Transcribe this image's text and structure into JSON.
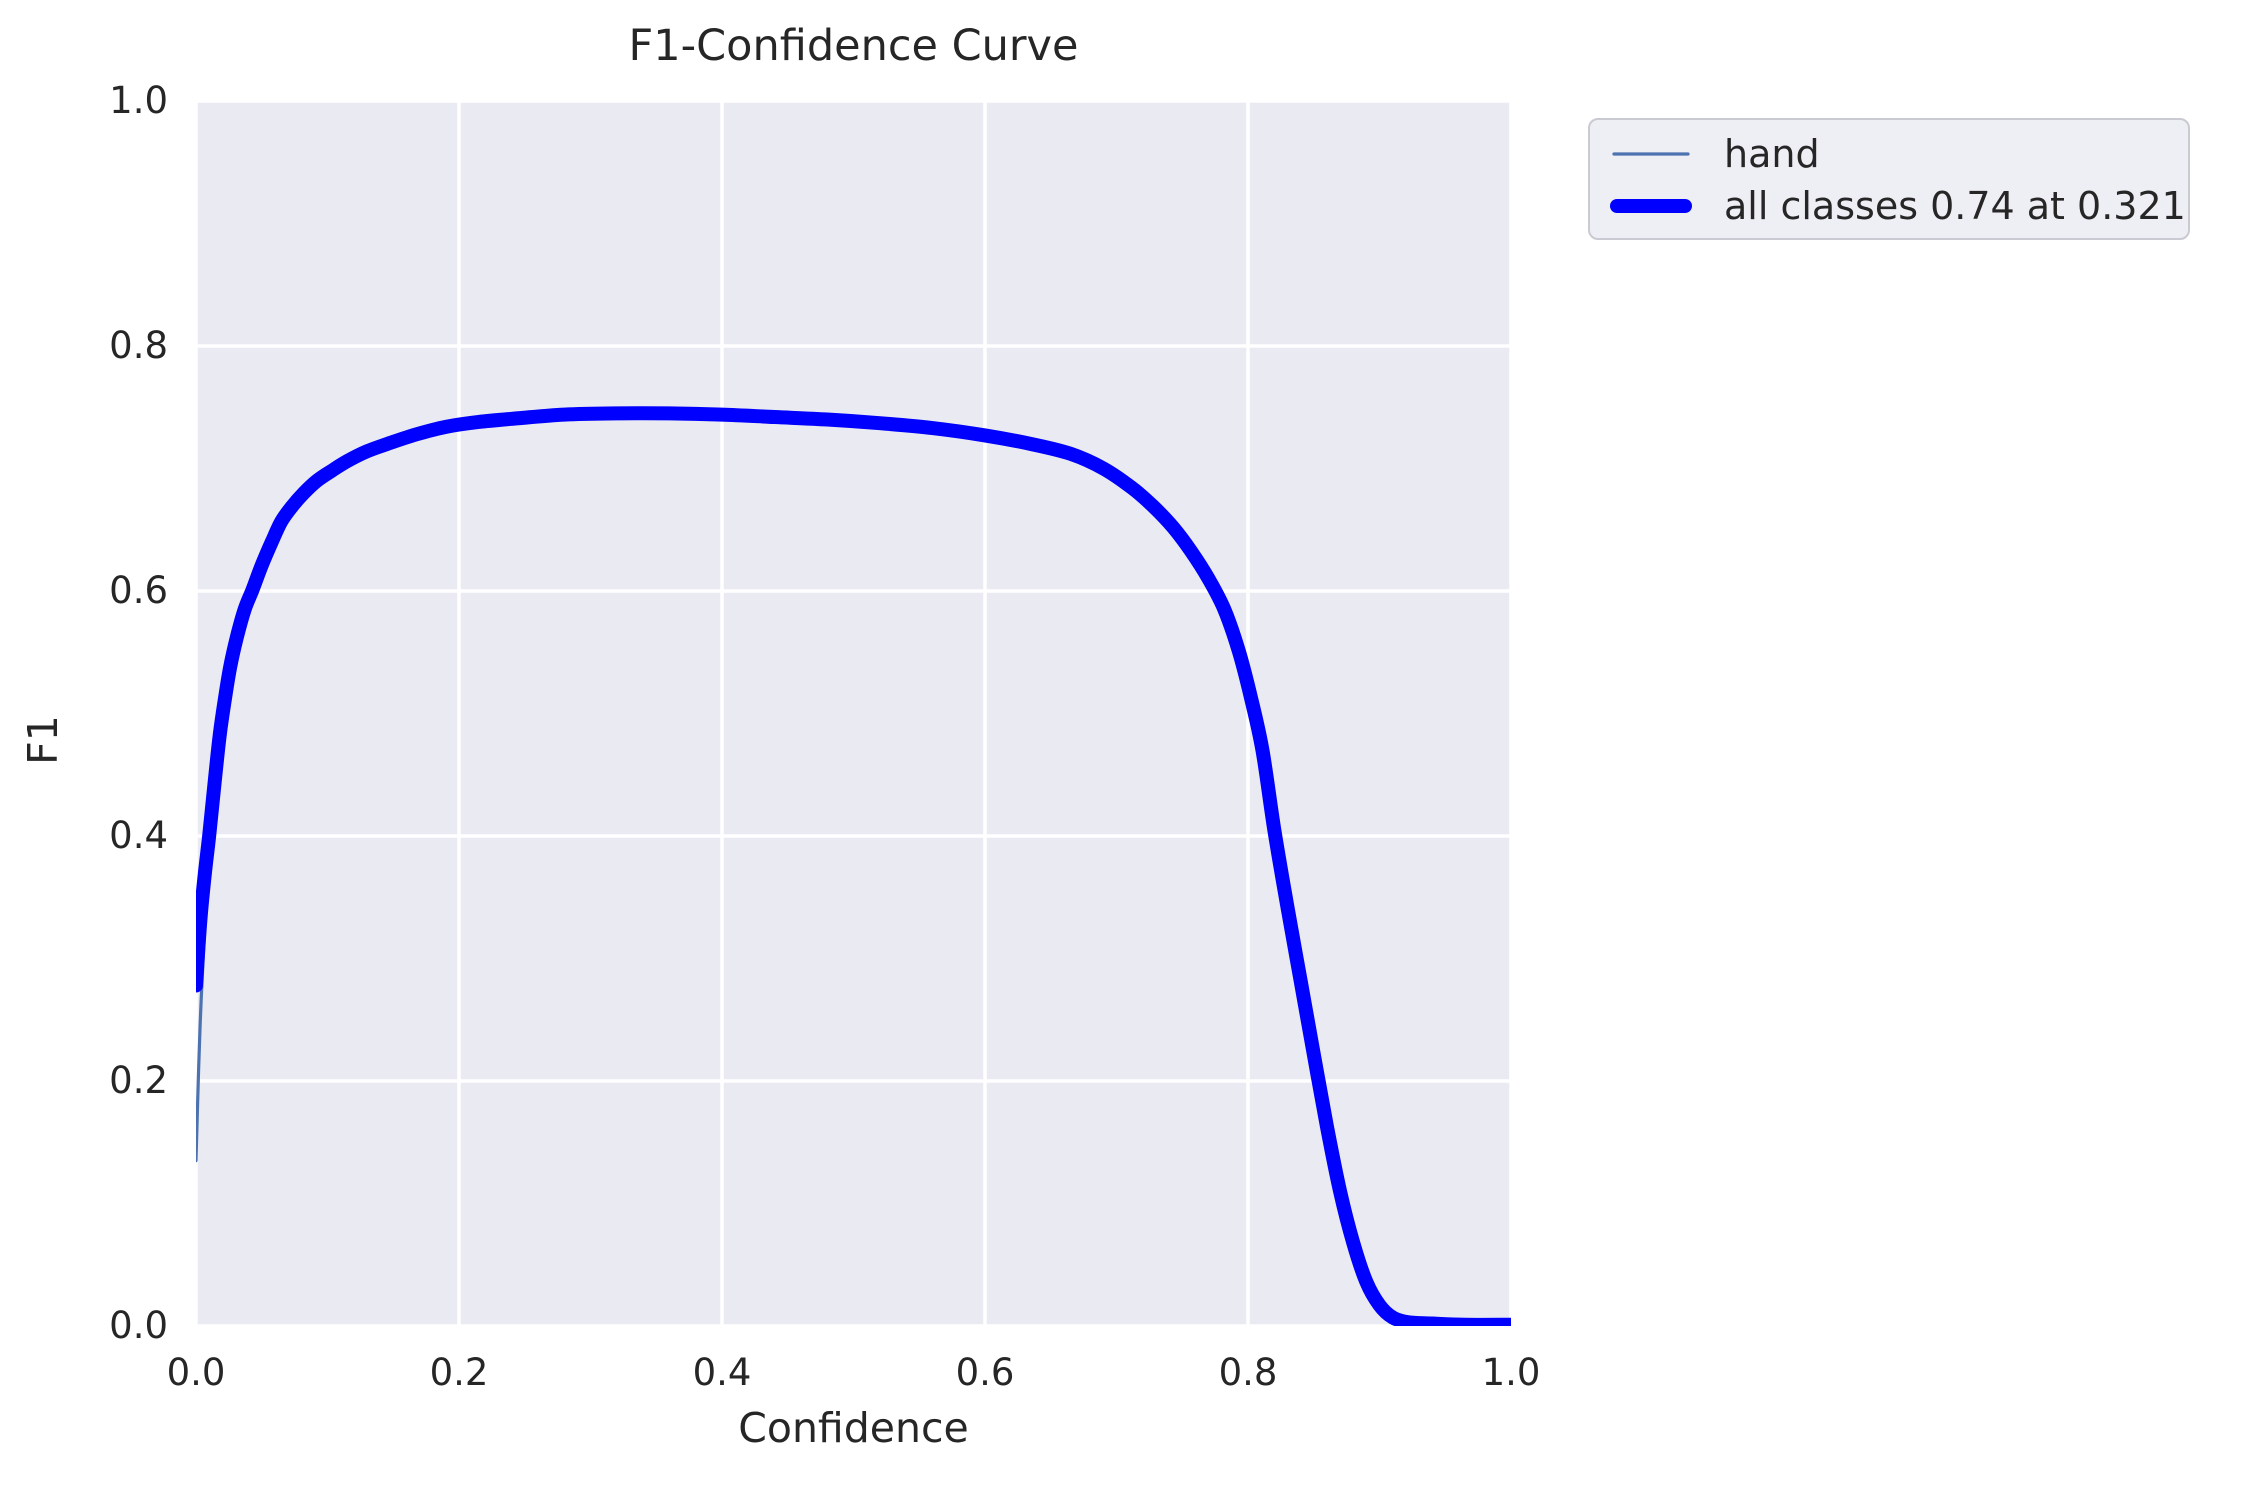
{
  "chart_data": {
    "type": "line",
    "title": "F1-Confidence Curve",
    "xlabel": "Confidence",
    "ylabel": "F1",
    "xlim": [
      0.0,
      1.0
    ],
    "ylim": [
      0.0,
      1.0
    ],
    "xticks": [
      "0.0",
      "0.2",
      "0.4",
      "0.6",
      "0.8",
      "1.0"
    ],
    "yticks": [
      "0.0",
      "0.2",
      "0.4",
      "0.6",
      "0.8",
      "1.0"
    ],
    "grid": true,
    "legend_position": "outside-upper-right",
    "best_f1": 0.74,
    "best_confidence": 0.321,
    "series": [
      {
        "name": "hand",
        "color": "#4C72B0",
        "linewidth": 3.2,
        "points": [
          [
            0.0,
            0.135
          ],
          [
            0.002,
            0.21
          ],
          [
            0.004,
            0.268
          ],
          [
            0.007,
            0.33
          ],
          [
            0.01,
            0.382
          ],
          [
            0.014,
            0.432
          ],
          [
            0.018,
            0.472
          ],
          [
            0.022,
            0.505
          ],
          [
            0.027,
            0.536
          ],
          [
            0.033,
            0.565
          ],
          [
            0.04,
            0.59
          ],
          [
            0.048,
            0.614
          ],
          [
            0.056,
            0.635
          ],
          [
            0.065,
            0.654
          ],
          [
            0.074,
            0.668
          ],
          [
            0.084,
            0.68
          ],
          [
            0.094,
            0.689
          ],
          [
            0.105,
            0.697
          ],
          [
            0.118,
            0.706
          ],
          [
            0.133,
            0.714
          ],
          [
            0.15,
            0.721
          ],
          [
            0.17,
            0.727
          ],
          [
            0.192,
            0.733
          ],
          [
            0.217,
            0.738
          ],
          [
            0.247,
            0.741
          ],
          [
            0.282,
            0.743
          ],
          [
            0.321,
            0.745
          ],
          [
            0.36,
            0.745
          ],
          [
            0.4,
            0.744
          ],
          [
            0.44,
            0.742
          ],
          [
            0.48,
            0.739
          ],
          [
            0.52,
            0.736
          ],
          [
            0.56,
            0.732
          ],
          [
            0.6,
            0.727
          ],
          [
            0.635,
            0.72
          ],
          [
            0.665,
            0.711
          ],
          [
            0.69,
            0.699
          ],
          [
            0.712,
            0.683
          ],
          [
            0.728,
            0.668
          ],
          [
            0.743,
            0.651
          ],
          [
            0.757,
            0.631
          ],
          [
            0.77,
            0.609
          ],
          [
            0.782,
            0.584
          ],
          [
            0.793,
            0.55
          ],
          [
            0.802,
            0.512
          ],
          [
            0.812,
            0.462
          ],
          [
            0.822,
            0.395
          ],
          [
            0.834,
            0.325
          ],
          [
            0.846,
            0.252
          ],
          [
            0.858,
            0.182
          ],
          [
            0.87,
            0.118
          ],
          [
            0.882,
            0.067
          ],
          [
            0.894,
            0.031
          ],
          [
            0.906,
            0.013
          ],
          [
            0.918,
            0.005
          ],
          [
            0.932,
            0.002
          ],
          [
            0.955,
            0.001
          ],
          [
            1.0,
            0.001
          ]
        ]
      },
      {
        "name": "all classes 0.74 at 0.321",
        "color": "#0000FF",
        "linewidth": 14,
        "points": [
          [
            0.0,
            0.278
          ],
          [
            0.002,
            0.312
          ],
          [
            0.004,
            0.34
          ],
          [
            0.007,
            0.372
          ],
          [
            0.01,
            0.4
          ],
          [
            0.014,
            0.442
          ],
          [
            0.018,
            0.482
          ],
          [
            0.022,
            0.512
          ],
          [
            0.026,
            0.538
          ],
          [
            0.031,
            0.562
          ],
          [
            0.037,
            0.585
          ],
          [
            0.043,
            0.601
          ],
          [
            0.05,
            0.621
          ],
          [
            0.058,
            0.641
          ],
          [
            0.065,
            0.657
          ],
          [
            0.073,
            0.669
          ],
          [
            0.082,
            0.68
          ],
          [
            0.092,
            0.69
          ],
          [
            0.103,
            0.698
          ],
          [
            0.115,
            0.706
          ],
          [
            0.13,
            0.714
          ],
          [
            0.148,
            0.721
          ],
          [
            0.168,
            0.728
          ],
          [
            0.19,
            0.734
          ],
          [
            0.215,
            0.738
          ],
          [
            0.245,
            0.741
          ],
          [
            0.28,
            0.744
          ],
          [
            0.321,
            0.745
          ],
          [
            0.36,
            0.745
          ],
          [
            0.4,
            0.744
          ],
          [
            0.44,
            0.742
          ],
          [
            0.48,
            0.74
          ],
          [
            0.52,
            0.737
          ],
          [
            0.56,
            0.733
          ],
          [
            0.6,
            0.727
          ],
          [
            0.635,
            0.72
          ],
          [
            0.665,
            0.712
          ],
          [
            0.69,
            0.7
          ],
          [
            0.712,
            0.684
          ],
          [
            0.728,
            0.669
          ],
          [
            0.743,
            0.652
          ],
          [
            0.757,
            0.632
          ],
          [
            0.77,
            0.61
          ],
          [
            0.782,
            0.585
          ],
          [
            0.793,
            0.551
          ],
          [
            0.802,
            0.514
          ],
          [
            0.811,
            0.47
          ],
          [
            0.82,
            0.405
          ],
          [
            0.83,
            0.342
          ],
          [
            0.84,
            0.282
          ],
          [
            0.85,
            0.222
          ],
          [
            0.86,
            0.163
          ],
          [
            0.87,
            0.11
          ],
          [
            0.88,
            0.068
          ],
          [
            0.89,
            0.036
          ],
          [
            0.9,
            0.017
          ],
          [
            0.91,
            0.007
          ],
          [
            0.922,
            0.003
          ],
          [
            0.94,
            0.002
          ],
          [
            0.965,
            0.001
          ],
          [
            1.0,
            0.001
          ]
        ]
      }
    ],
    "colors": {
      "figure_background": "#FFFFFF",
      "axes_background": "#EAEAF2",
      "grid": "#FFFFFF",
      "text": "#262626",
      "hand_line": "#4C72B0",
      "all_classes_line": "#0000FF",
      "legend_background": "#EEEEF5",
      "legend_border": "#CACAD2"
    }
  }
}
